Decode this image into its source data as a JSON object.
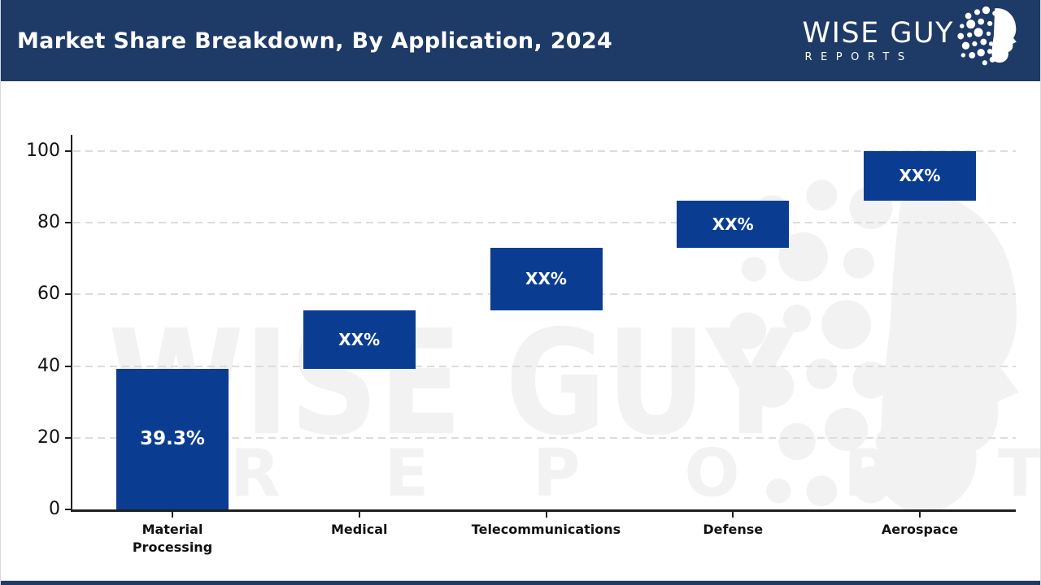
{
  "header": {
    "title": "Market Share Breakdown, By Application, 2024",
    "logo": {
      "line1": "WISE GUY",
      "line2": "REPORTS",
      "icon": "dotted-face-profile"
    }
  },
  "watermark": {
    "line1": "WISE GUY",
    "line2": "R E P O R T S"
  },
  "colors": {
    "header_bg": "#1e3a66",
    "footer_bg": "#1e3a66",
    "bar": "#0a3d91",
    "bar_label": "#ffffff",
    "grid": "#dcdcdc",
    "axis": "#1f1f1f",
    "tick_label": "#111111",
    "watermark": "#f2f2f2"
  },
  "chart_data": {
    "type": "bar",
    "subtype": "waterfall",
    "title": "Market Share Breakdown, By Application, 2024",
    "categories": [
      "Material Processing",
      "Medical",
      "Telecommunications",
      "Defense",
      "Aerospace"
    ],
    "category_lines": [
      [
        "Material",
        "Processing"
      ],
      [
        "Medical"
      ],
      [
        "Telecommunications"
      ],
      [
        "Defense"
      ],
      [
        "Aerospace"
      ]
    ],
    "segments": [
      {
        "category": "Material Processing",
        "start": 0,
        "end": 39.3,
        "label": "39.3%"
      },
      {
        "category": "Medical",
        "start": 39.3,
        "end": 55.5,
        "label": "XX%"
      },
      {
        "category": "Telecommunications",
        "start": 55.5,
        "end": 73.1,
        "label": "XX%"
      },
      {
        "category": "Defense",
        "start": 73.1,
        "end": 86.2,
        "label": "XX%"
      },
      {
        "category": "Aerospace",
        "start": 86.2,
        "end": 100,
        "label": "XX%"
      }
    ],
    "ylim": [
      0,
      100
    ],
    "yticks": [
      0,
      20,
      40,
      60,
      80,
      100
    ],
    "xlabel": "",
    "ylabel": "",
    "grid": "horizontal-dashed",
    "legend": false
  }
}
